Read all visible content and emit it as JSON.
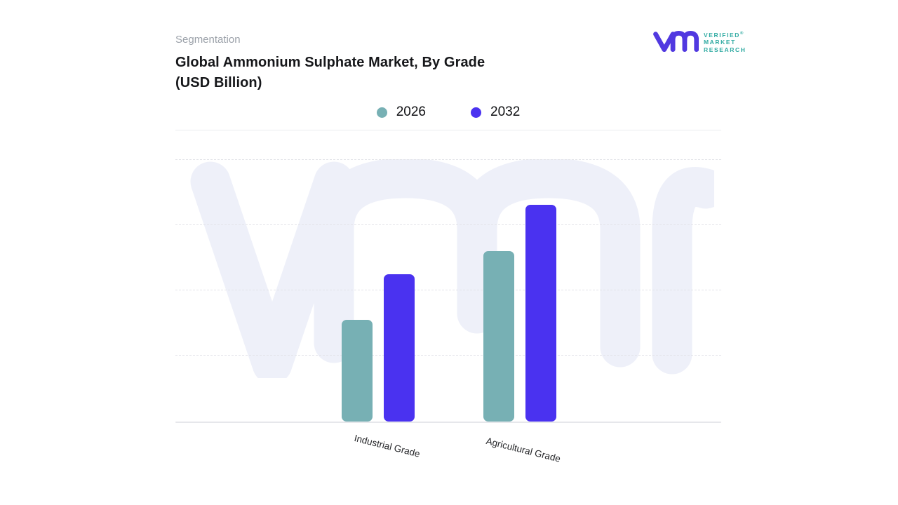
{
  "header": {
    "eyebrow": "Segmentation",
    "title_line1": "Global Ammonium Sulphate Market, By Grade",
    "title_line2": "(USD Billion)"
  },
  "brand": {
    "name_lines": [
      "VERIFIED",
      "MARKET",
      "RESEARCH"
    ],
    "registered_mark": "®",
    "mark_color": "#5139e0",
    "text_color": "#2faaa2"
  },
  "legend": [
    {
      "label": "2026",
      "color": "#77b0b4"
    },
    {
      "label": "2032",
      "color": "#4a32f0"
    }
  ],
  "chart_data": {
    "type": "bar",
    "title": "Global Ammonium Sulphate Market, By Grade (USD Billion)",
    "categories": [
      "Industrial Grade",
      "Agricultural Grade"
    ],
    "series": [
      {
        "name": "2026",
        "color": "#77b0b4",
        "values": [
          1.55,
          2.6
        ]
      },
      {
        "name": "2032",
        "color": "#4a32f0",
        "values": [
          2.25,
          3.3
        ]
      }
    ],
    "xlabel": "",
    "ylabel": "",
    "ylim": [
      0,
      4
    ],
    "value_axis_labels_visible": false,
    "gridlines": "horizontal-dashed",
    "legend_position": "top-center",
    "note": "Y axis is unlabeled in the source image; values are estimated in gridline units (1 unit = one gridline spacing)."
  },
  "watermark_text": "vmr"
}
